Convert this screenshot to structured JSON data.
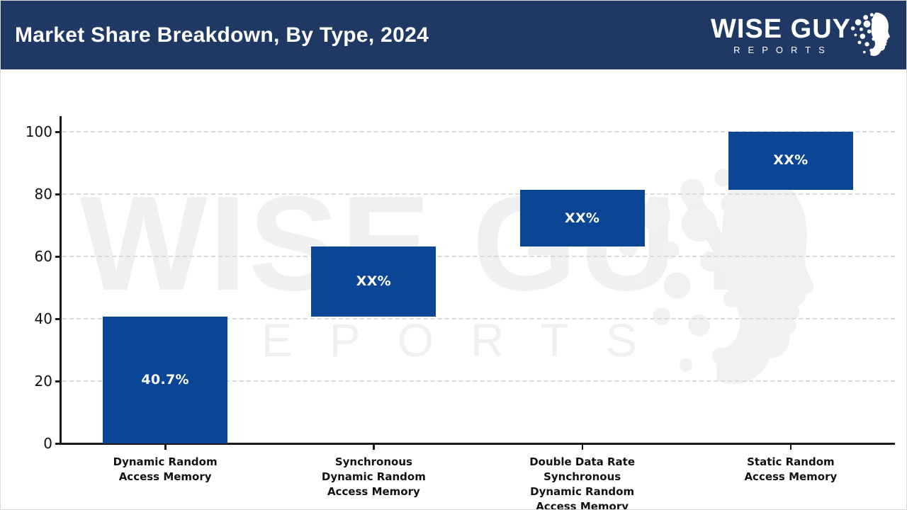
{
  "header": {
    "title": "Market Share Breakdown, By Type, 2024",
    "bg_color": "#203864",
    "logo": {
      "wordmark": "WISE GUY",
      "subtext": "REPORTS"
    }
  },
  "watermark": {
    "wordmark": "WISE GUY",
    "subtext": "REPORTS"
  },
  "chart_data": {
    "type": "bar",
    "subtype": "waterfall",
    "title": "Market Share Breakdown, By Type, 2024",
    "xlabel": "",
    "ylabel": "",
    "ylim": [
      0,
      105
    ],
    "yticks": [
      0,
      20,
      40,
      60,
      80,
      100
    ],
    "grid": "horizontal-dashed",
    "legend": null,
    "bar_color": "#0b4596",
    "categories": [
      "Dynamic Random Access Memory",
      "Synchronous Dynamic Random Access Memory",
      "Double Data Rate Synchronous Dynamic Random Access Memory",
      "Static Random Access Memory"
    ],
    "category_lines": [
      [
        "Dynamic Random",
        "Access Memory"
      ],
      [
        "Synchronous",
        "Dynamic Random",
        "Access Memory"
      ],
      [
        "Double Data Rate",
        "Synchronous",
        "Dynamic Random",
        "Access Memory"
      ],
      [
        "Static Random",
        "Access Memory"
      ]
    ],
    "bars": [
      {
        "label": "40.7%",
        "start": 0,
        "end": 40.7
      },
      {
        "label": "XX%",
        "start": 40.7,
        "end": 63.2
      },
      {
        "label": "XX%",
        "start": 63.2,
        "end": 81.4
      },
      {
        "label": "XX%",
        "start": 81.4,
        "end": 100
      }
    ]
  }
}
